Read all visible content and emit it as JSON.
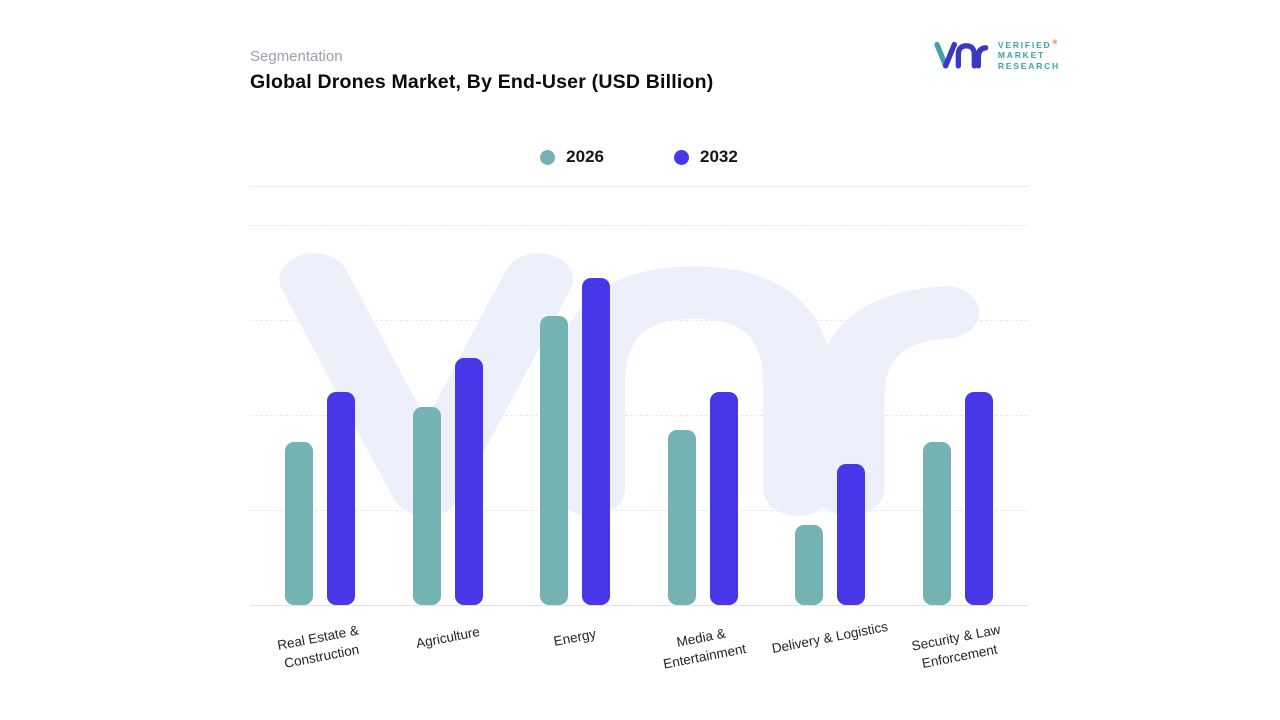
{
  "header": {
    "eyebrow": "Segmentation",
    "title": "Global Drones Market, By End-User (USD Billion)"
  },
  "logo": {
    "lines": [
      "VERIFIED",
      "MARKET",
      "RESEARCH"
    ],
    "registered": "®",
    "icon": "vmr-monogram",
    "teal": "#41A3A9",
    "indigo": "#3937C6"
  },
  "watermark_icon": "vmr-monogram-watermark",
  "colors": {
    "series_2026": "#74B2B4",
    "series_2032": "#4637E9",
    "watermark": "#EDEFFA",
    "grid": "#E9E9EC"
  },
  "chart_data": {
    "type": "bar",
    "title": "Global Drones Market, By End-User (USD Billion)",
    "categories": [
      "Real Estate & Construction",
      "Agriculture",
      "Energy",
      "Media & Entertainment",
      "Delivery & Logistics",
      "Security & Law Enforcement"
    ],
    "series": [
      {
        "name": "2026",
        "color": "#74B2B4",
        "values": [
          43,
          52,
          76,
          46,
          21,
          43
        ]
      },
      {
        "name": "2032",
        "color": "#4637E9",
        "values": [
          56,
          65,
          86,
          56,
          37,
          56
        ]
      }
    ],
    "xlabel": "",
    "ylabel": "",
    "ylim": [
      0,
      100
    ],
    "y_axis_labels_visible": false,
    "values_unit": "relative height % (no numeric axis shown)",
    "grid": "horizontal-dashed",
    "legend_position": "top-center"
  }
}
